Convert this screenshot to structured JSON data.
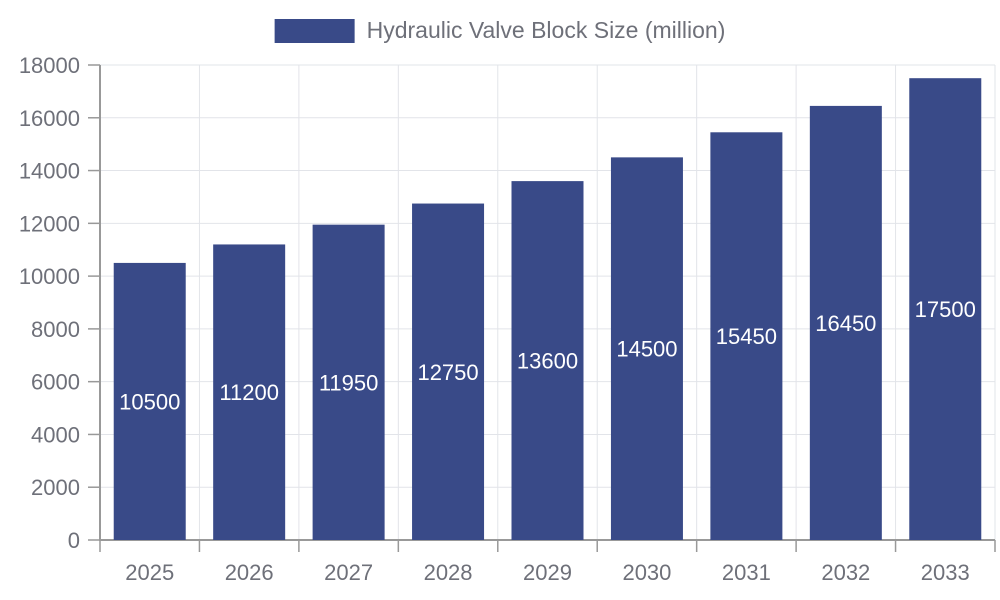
{
  "chart_data": {
    "type": "bar",
    "title": "Hydraulic Valve Block Size (million)",
    "legend_entries": [
      "Hydraulic Valve Block Size (million)"
    ],
    "legend_position": "top-center",
    "categories": [
      "2025",
      "2026",
      "2027",
      "2028",
      "2029",
      "2030",
      "2031",
      "2032",
      "2033"
    ],
    "values": [
      10500,
      11200,
      11950,
      12750,
      13600,
      14500,
      15450,
      16450,
      17500
    ],
    "value_labels": [
      "10500",
      "11200",
      "11950",
      "12750",
      "13600",
      "14500",
      "15450",
      "16450",
      "17500"
    ],
    "value_label_position": "inside-middle",
    "xlabel": "",
    "ylabel": "",
    "ylim": [
      0,
      18000
    ],
    "ytick_step": 2000,
    "ytick_labels": [
      "0",
      "2000",
      "4000",
      "6000",
      "8000",
      "10000",
      "12000",
      "14000",
      "16000",
      "18000"
    ],
    "grid": true,
    "colors": {
      "bar": "#394A88",
      "value_label": "#ffffff",
      "axis_text": "#6E7079",
      "axis_line": "#999999",
      "grid_line": "#E2E4E9",
      "background": "#ffffff"
    }
  }
}
